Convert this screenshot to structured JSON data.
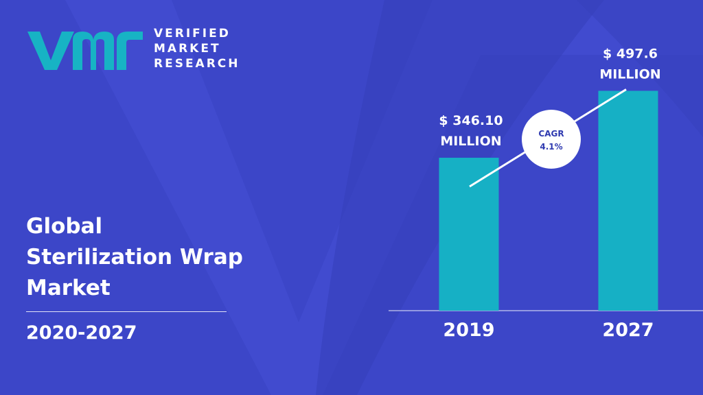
{
  "brand": {
    "line1": "VERIFIED",
    "line2": "MARKET",
    "line3": "RESEARCH",
    "logo_icon": "vmr-logo-icon",
    "logo_color": "#17b3c4"
  },
  "title": {
    "line1": "Global",
    "line2": "Sterilization Wrap",
    "line3": "Market"
  },
  "period": "2020-2027",
  "colors": {
    "background": "#3c46c8",
    "bar": "#16b0c5",
    "text": "#ffffff",
    "cagr_text": "#2f3ab0"
  },
  "chart_data": {
    "type": "bar",
    "categories": [
      "2019",
      "2027"
    ],
    "values": [
      346.1,
      497.6
    ],
    "value_labels": [
      [
        "$ 346.10",
        "MILLION"
      ],
      [
        "$ 497.6",
        "MILLION"
      ]
    ],
    "cagr_label": "CAGR",
    "cagr_value": "4.1%",
    "ylim": [
      0,
      520
    ],
    "grid": false,
    "legend": "none",
    "title": "",
    "xlabel": "",
    "ylabel": ""
  }
}
